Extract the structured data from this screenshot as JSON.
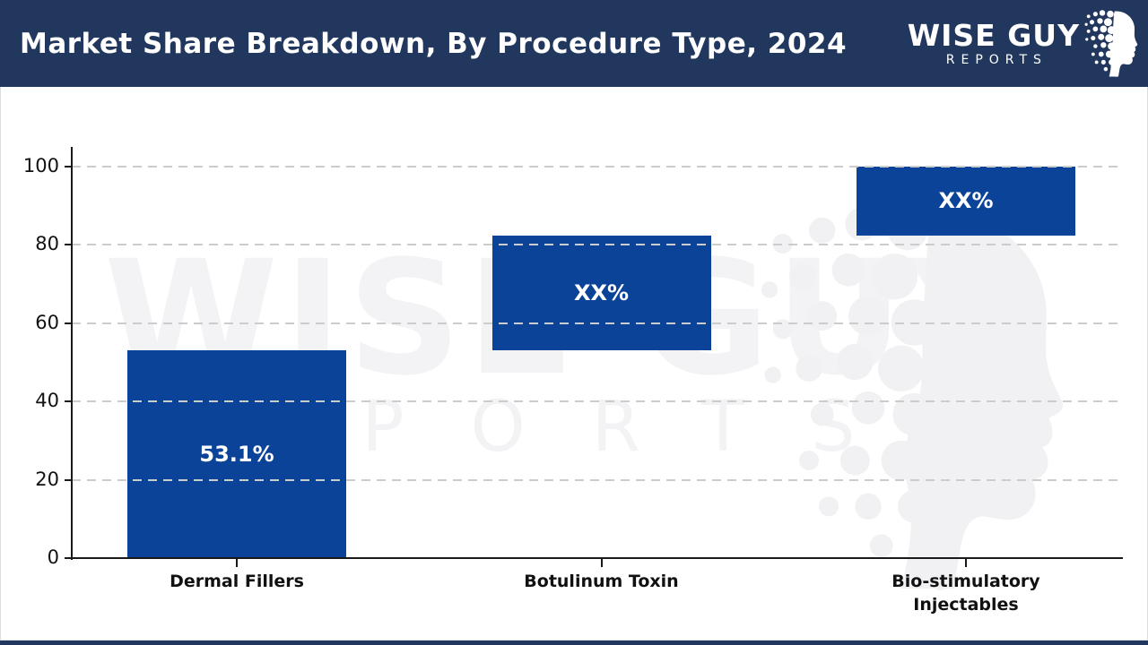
{
  "header": {
    "title": "Market Share Breakdown, By Procedure Type, 2024",
    "logo": {
      "line1": "WISE GUY",
      "line2": "REPORTS"
    }
  },
  "watermark": {
    "line1": "WISE GUY",
    "line2": "REPORTS"
  },
  "footer": {},
  "chart_data": {
    "type": "waterfall",
    "title": "Market Share Breakdown, By Procedure Type, 2024",
    "categories": [
      "Dermal Fillers",
      "Botulinum Toxin",
      "Bio-stimulatory Injectables"
    ],
    "segments": [
      {
        "category": "Dermal Fillers",
        "start": 0,
        "end": 53.1,
        "label": "53.1%"
      },
      {
        "category": "Botulinum Toxin",
        "start": 53.1,
        "end": 82.4,
        "label": "XX%"
      },
      {
        "category": "Bio-stimulatory Injectables",
        "start": 82.4,
        "end": 100,
        "label": "XX%"
      }
    ],
    "y_ticks": [
      0,
      20,
      40,
      60,
      80,
      100
    ],
    "ylim": [
      0,
      105
    ],
    "xlabel": "",
    "ylabel": "",
    "grid": "horizontal-dashed, drawn above bars",
    "legend": "none",
    "bar_color": "#0b4398",
    "bar_label_color": "#ffffff",
    "axis_color": "#1a1a1a",
    "grid_color": "#cccccc"
  },
  "colors": {
    "header_bg": "#22375e",
    "footer_bg": "#22375e",
    "watermark": "#f3f3f5",
    "background": "#ffffff"
  }
}
